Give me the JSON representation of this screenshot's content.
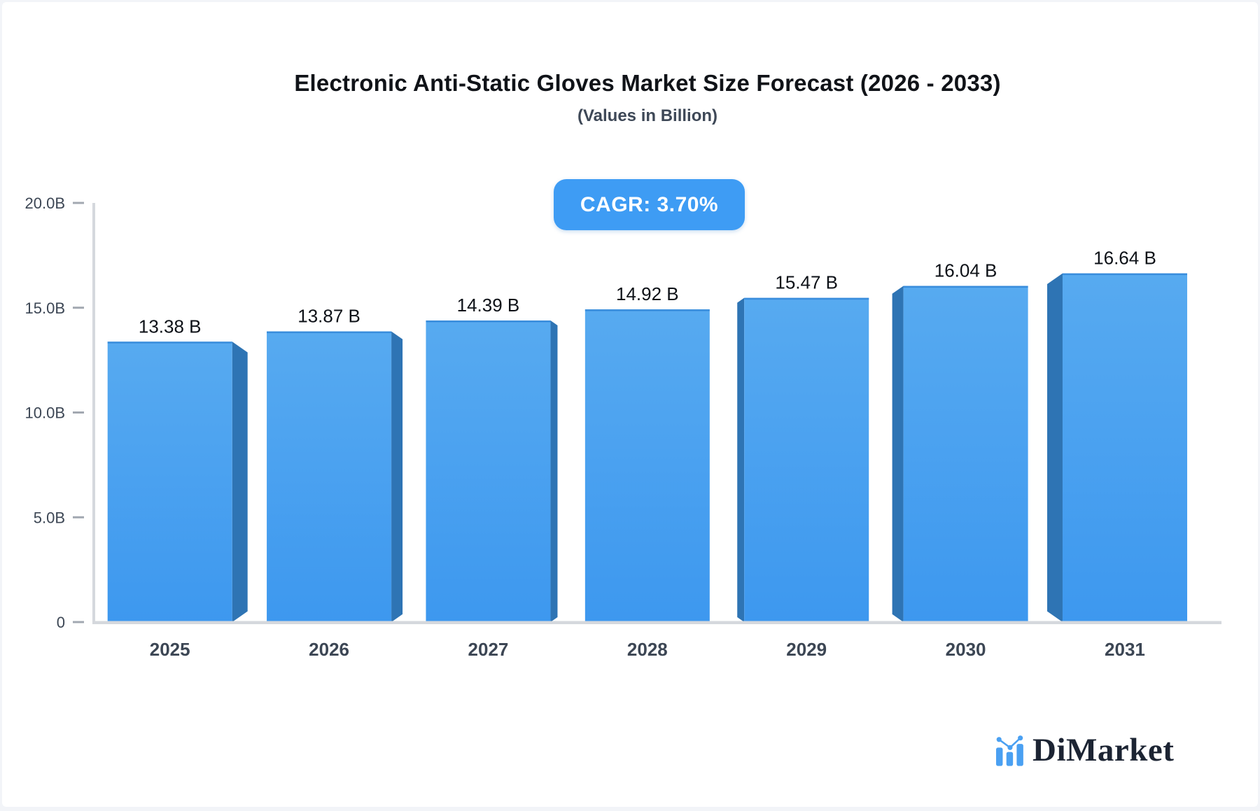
{
  "header": {
    "title": "Electronic Anti-Static Gloves Market Size Forecast (2026 - 2033)",
    "subtitle": "(Values in Billion)"
  },
  "badge": {
    "label": "CAGR: 3.70%",
    "bg": "#3E9CF4",
    "text_color": "#ffffff"
  },
  "chart_data": {
    "type": "bar",
    "title": "Electronic Anti-Static Gloves Market Size Forecast (2026 - 2033)",
    "subtitle": "(Values in Billion)",
    "categories": [
      "2025",
      "2026",
      "2027",
      "2028",
      "2029",
      "2030",
      "2031"
    ],
    "values": [
      13.38,
      13.87,
      14.39,
      14.92,
      15.47,
      16.04,
      16.64
    ],
    "value_labels": [
      "13.38 B",
      "13.87 B",
      "14.39 B",
      "14.92 B",
      "15.47 B",
      "16.04 B",
      "16.64 B"
    ],
    "xlabel": "",
    "ylabel": "",
    "ylim": [
      0,
      20
    ],
    "yticks": [
      {
        "value": 0,
        "label": "0"
      },
      {
        "value": 5,
        "label": "5.0B"
      },
      {
        "value": 10,
        "label": "10.0B"
      },
      {
        "value": 15,
        "label": "15.0B"
      },
      {
        "value": 20,
        "label": "20.0B"
      }
    ],
    "grid": false,
    "legend": "none",
    "style": "3d-beveled-bars-perspective-toward-center",
    "colors": {
      "bar_face_top": "#57AAF0",
      "bar_face_bottom": "#3D98EF",
      "bar_top_edge": "#2F83D6",
      "bar_side": "#2E74B4",
      "axis_line": "#D5D8DD",
      "tick_dash": "#A2A8B1",
      "tick_text": "#3C4654",
      "category_text": "#3C4654",
      "value_text": "#0D1117"
    }
  },
  "logo": {
    "text": "DiMarket",
    "icon": "bar-line-chart-icon",
    "text_color": "#1C2433",
    "icon_color": "#4AA0F2"
  }
}
